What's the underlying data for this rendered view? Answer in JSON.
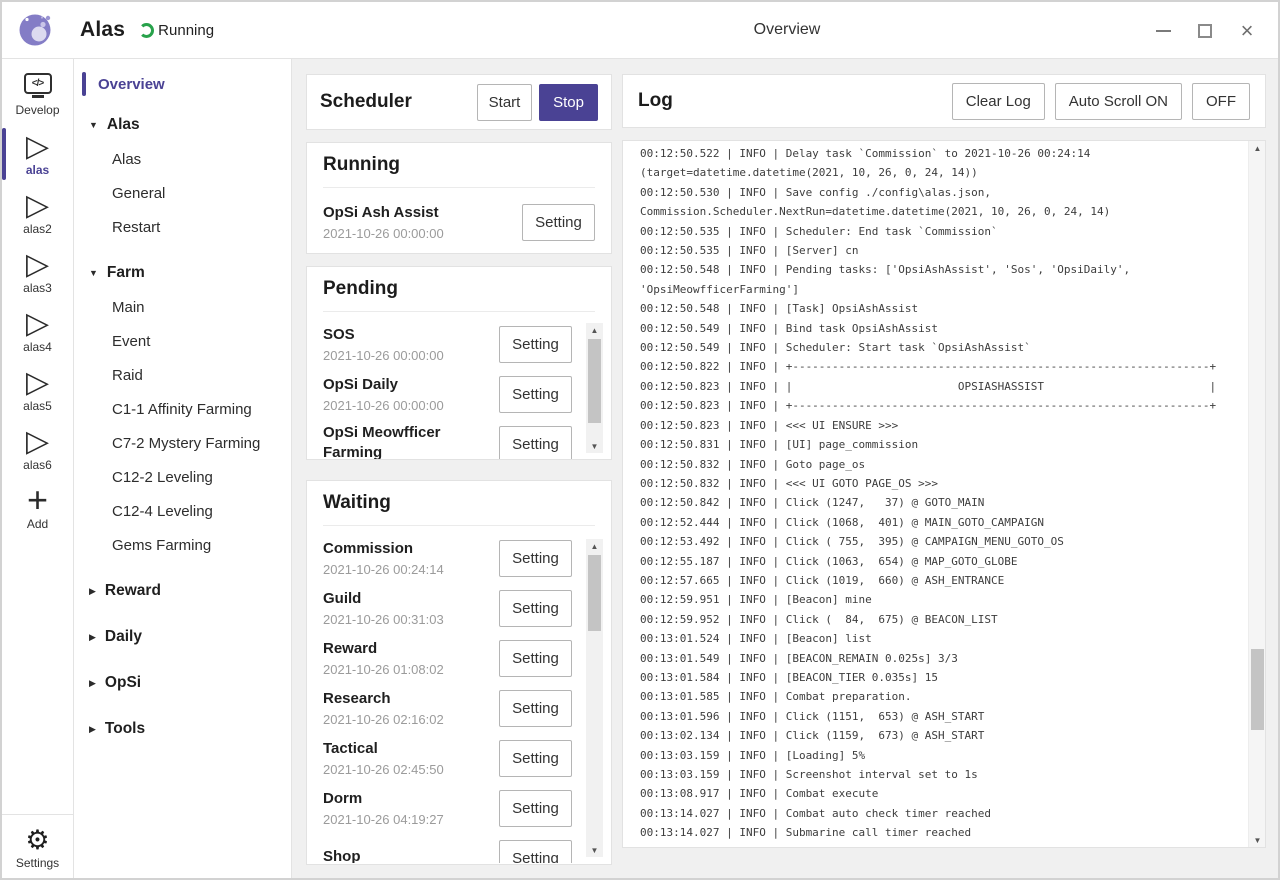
{
  "window": {
    "app_title": "Alas",
    "status": "Running",
    "page_title": "Overview"
  },
  "icons": {
    "close": "×",
    "gear": "⚙",
    "scroll_up": "▲",
    "scroll_down": "▼",
    "minimize": "minus-bar",
    "maximize": "square-outline",
    "play": "▷",
    "add": "+",
    "develop": "</>-monitor",
    "group_expanded": "▼",
    "group_collapsed": "▶"
  },
  "colors": {
    "accent": "#4a4294",
    "green": "#28a24b"
  },
  "labels": {
    "setting": "Setting"
  },
  "rail": {
    "items": [
      {
        "type": "develop",
        "label": "Develop"
      },
      {
        "type": "play",
        "label": "alas",
        "active": true
      },
      {
        "type": "play",
        "label": "alas2"
      },
      {
        "type": "play",
        "label": "alas3"
      },
      {
        "type": "play",
        "label": "alas4"
      },
      {
        "type": "play",
        "label": "alas5"
      },
      {
        "type": "play",
        "label": "alas6"
      },
      {
        "type": "plus",
        "label": "Add"
      }
    ],
    "settings_label": "Settings"
  },
  "nav": {
    "items": [
      {
        "type": "page",
        "label": "Overview",
        "active": true
      },
      {
        "type": "group",
        "label": "Alas"
      },
      {
        "type": "sub",
        "label": "Alas"
      },
      {
        "type": "sub",
        "label": "General"
      },
      {
        "type": "sub",
        "label": "Restart"
      },
      {
        "type": "group",
        "label": "Farm"
      },
      {
        "type": "sub",
        "label": "Main"
      },
      {
        "type": "sub",
        "label": "Event"
      },
      {
        "type": "sub",
        "label": "Raid"
      },
      {
        "type": "sub",
        "label": "C1-1 Affinity Farming"
      },
      {
        "type": "sub",
        "label": "C7-2 Mystery Farming"
      },
      {
        "type": "sub",
        "label": "C12-2 Leveling"
      },
      {
        "type": "sub",
        "label": "C12-4 Leveling"
      },
      {
        "type": "sub",
        "label": "Gems Farming"
      },
      {
        "type": "groupc",
        "label": "Reward"
      },
      {
        "type": "groupc",
        "label": "Daily"
      },
      {
        "type": "groupc",
        "label": "OpSi"
      },
      {
        "type": "groupc",
        "label": "Tools"
      }
    ]
  },
  "scheduler": {
    "title": "Scheduler",
    "start": "Start",
    "stop": "Stop"
  },
  "running": {
    "title": "Running",
    "items": [
      {
        "name": "OpSi Ash Assist",
        "time": "2021-10-26 00:00:00"
      }
    ]
  },
  "pending": {
    "title": "Pending",
    "items": [
      {
        "name": "SOS",
        "time": "2021-10-26 00:00:00"
      },
      {
        "name": "OpSi Daily",
        "time": "2021-10-26 00:00:00"
      },
      {
        "name": "OpSi Meowfficer Farming",
        "time": ""
      }
    ]
  },
  "waiting": {
    "title": "Waiting",
    "items": [
      {
        "name": "Commission",
        "time": "2021-10-26 00:24:14"
      },
      {
        "name": "Guild",
        "time": "2021-10-26 00:31:03"
      },
      {
        "name": "Reward",
        "time": "2021-10-26 01:08:02"
      },
      {
        "name": "Research",
        "time": "2021-10-26 02:16:02"
      },
      {
        "name": "Tactical",
        "time": "2021-10-26 02:45:50"
      },
      {
        "name": "Dorm",
        "time": "2021-10-26 04:19:27"
      },
      {
        "name": "Shop",
        "time": ""
      }
    ]
  },
  "log": {
    "title": "Log",
    "clear": "Clear Log",
    "autoscroll": "Auto Scroll ON",
    "off": "OFF",
    "lines": [
      "00:12:50.522 | INFO | Delay task `Commission` to 2021-10-26 00:24:14",
      "(target=datetime.datetime(2021, 10, 26, 0, 24, 14))",
      "00:12:50.530 | INFO | Save config ./config\\alas.json,",
      "Commission.Scheduler.NextRun=datetime.datetime(2021, 10, 26, 0, 24, 14)",
      "00:12:50.535 | INFO | Scheduler: End task `Commission`",
      "00:12:50.535 | INFO | [Server] cn",
      "00:12:50.548 | INFO | Pending tasks: ['OpsiAshAssist', 'Sos', 'OpsiDaily',",
      "'OpsiMeowfficerFarming']",
      "00:12:50.548 | INFO | [Task] OpsiAshAssist",
      "00:12:50.549 | INFO | Bind task OpsiAshAssist",
      "00:12:50.549 | INFO | Scheduler: Start task `OpsiAshAssist`",
      "00:12:50.822 | INFO | +---------------------------------------------------------------+",
      "00:12:50.823 | INFO | |                         OPSIASHASSIST                         |",
      "00:12:50.823 | INFO | +---------------------------------------------------------------+",
      "00:12:50.823 | INFO | <<< UI ENSURE >>>",
      "00:12:50.831 | INFO | [UI] page_commission",
      "00:12:50.832 | INFO | Goto page_os",
      "00:12:50.832 | INFO | <<< UI GOTO PAGE_OS >>>",
      "00:12:50.842 | INFO | Click (1247,   37) @ GOTO_MAIN",
      "00:12:52.444 | INFO | Click (1068,  401) @ MAIN_GOTO_CAMPAIGN",
      "00:12:53.492 | INFO | Click ( 755,  395) @ CAMPAIGN_MENU_GOTO_OS",
      "00:12:55.187 | INFO | Click (1063,  654) @ MAP_GOTO_GLOBE",
      "00:12:57.665 | INFO | Click (1019,  660) @ ASH_ENTRANCE",
      "00:12:59.951 | INFO | [Beacon] mine",
      "00:12:59.952 | INFO | Click (  84,  675) @ BEACON_LIST",
      "00:13:01.524 | INFO | [Beacon] list",
      "00:13:01.549 | INFO | [BEACON_REMAIN 0.025s] 3/3",
      "00:13:01.584 | INFO | [BEACON_TIER 0.035s] 15",
      "00:13:01.585 | INFO | Combat preparation.",
      "00:13:01.596 | INFO | Click (1151,  653) @ ASH_START",
      "00:13:02.134 | INFO | Click (1159,  673) @ ASH_START",
      "00:13:03.159 | INFO | [Loading] 5%",
      "00:13:03.159 | INFO | Screenshot interval set to 1s",
      "00:13:08.917 | INFO | Combat execute",
      "00:13:14.027 | INFO | Combat auto check timer reached",
      "00:13:14.027 | INFO | Submarine call timer reached"
    ]
  }
}
